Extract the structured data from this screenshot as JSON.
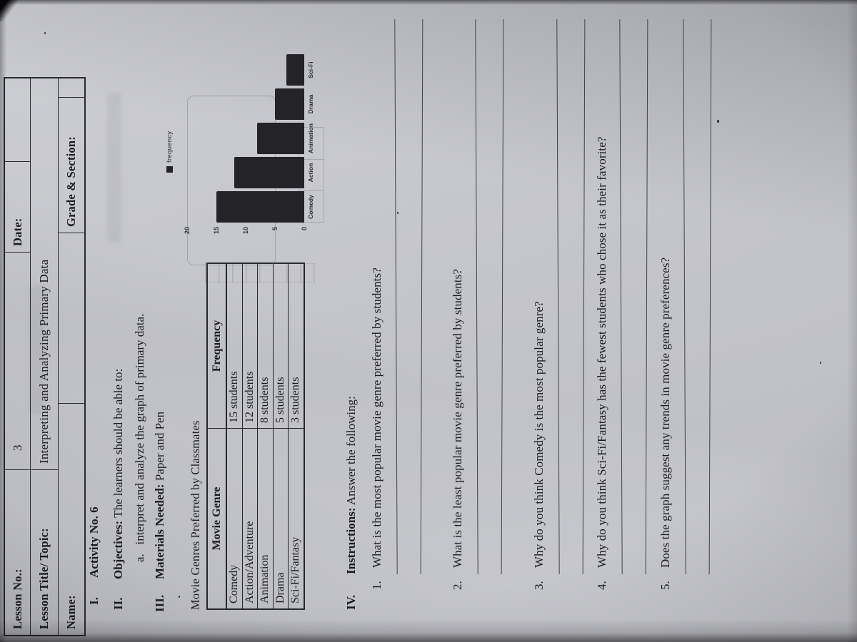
{
  "colors": {
    "paper": "#c6c7cc",
    "ink": "#1b1c21",
    "table_border": "#26272e",
    "answer_line": "#41424b",
    "bar": "#242428"
  },
  "header_table": {
    "rows": [
      {
        "label1": "Lesson No.:",
        "value1": "3",
        "label2": "Date:",
        "value2": ""
      },
      {
        "label1": "Lesson Title/ Topic:",
        "value1": "Interpreting and Analyzing Primary Data"
      },
      {
        "label1": "Name:",
        "value1": "",
        "label2": "Grade & Section:",
        "value2": ""
      }
    ]
  },
  "sections": {
    "i_num": "I.",
    "i_title": "Activity No. 6",
    "ii_num": "II.",
    "ii_label": "Objectives:",
    "ii_text": "The learners should be able to:",
    "a_num": "a.",
    "a_text": "interpret and analyze the graph of primary data.",
    "iii_num": "III.",
    "iii_label": "Materials Needed:",
    "iii_text": "Paper and Pen"
  },
  "data_table": {
    "caption": "Movie Genres Preferred by Classmates",
    "headers": [
      "Movie Genre",
      "Frequency"
    ],
    "rows": [
      [
        "Comedy",
        "15 students"
      ],
      [
        "Action/Adventure",
        "12 students"
      ],
      [
        "Animation",
        "8 students"
      ],
      [
        "Drama",
        "5 students"
      ],
      [
        "Sci-Fi/Fantasy",
        "3 students"
      ]
    ]
  },
  "chart_data": {
    "type": "bar",
    "title": "",
    "legend": "frequency",
    "legend_position": "top",
    "categories": [
      "Comedy",
      "Action",
      "Animation",
      "Drama",
      "Sci-Fi"
    ],
    "values": [
      15,
      12,
      8,
      5,
      3
    ],
    "xlabel": "",
    "ylabel": "",
    "ylim": [
      0,
      20
    ],
    "yticks": [
      0,
      5,
      10,
      15,
      20
    ],
    "grid": false,
    "bar_color": "#242428"
  },
  "instructions": {
    "num": "IV.",
    "label": "Instructions:",
    "text": "Answer the following:"
  },
  "questions": {
    "items": [
      {
        "num": "1.",
        "text": "What is the most popular movie genre preferred by students?"
      },
      {
        "num": "2.",
        "text": "What is the least popular movie genre preferred by students?"
      },
      {
        "num": "3.",
        "text": "Why do you think Comedy is the most popular genre?"
      },
      {
        "num": "4.",
        "text": "Why do you think Sci-Fi/Fantasy has the fewest students who chose it as their favorite?"
      },
      {
        "num": "5.",
        "text": "Does the graph suggest any trends in movie genre preferences?"
      }
    ]
  }
}
